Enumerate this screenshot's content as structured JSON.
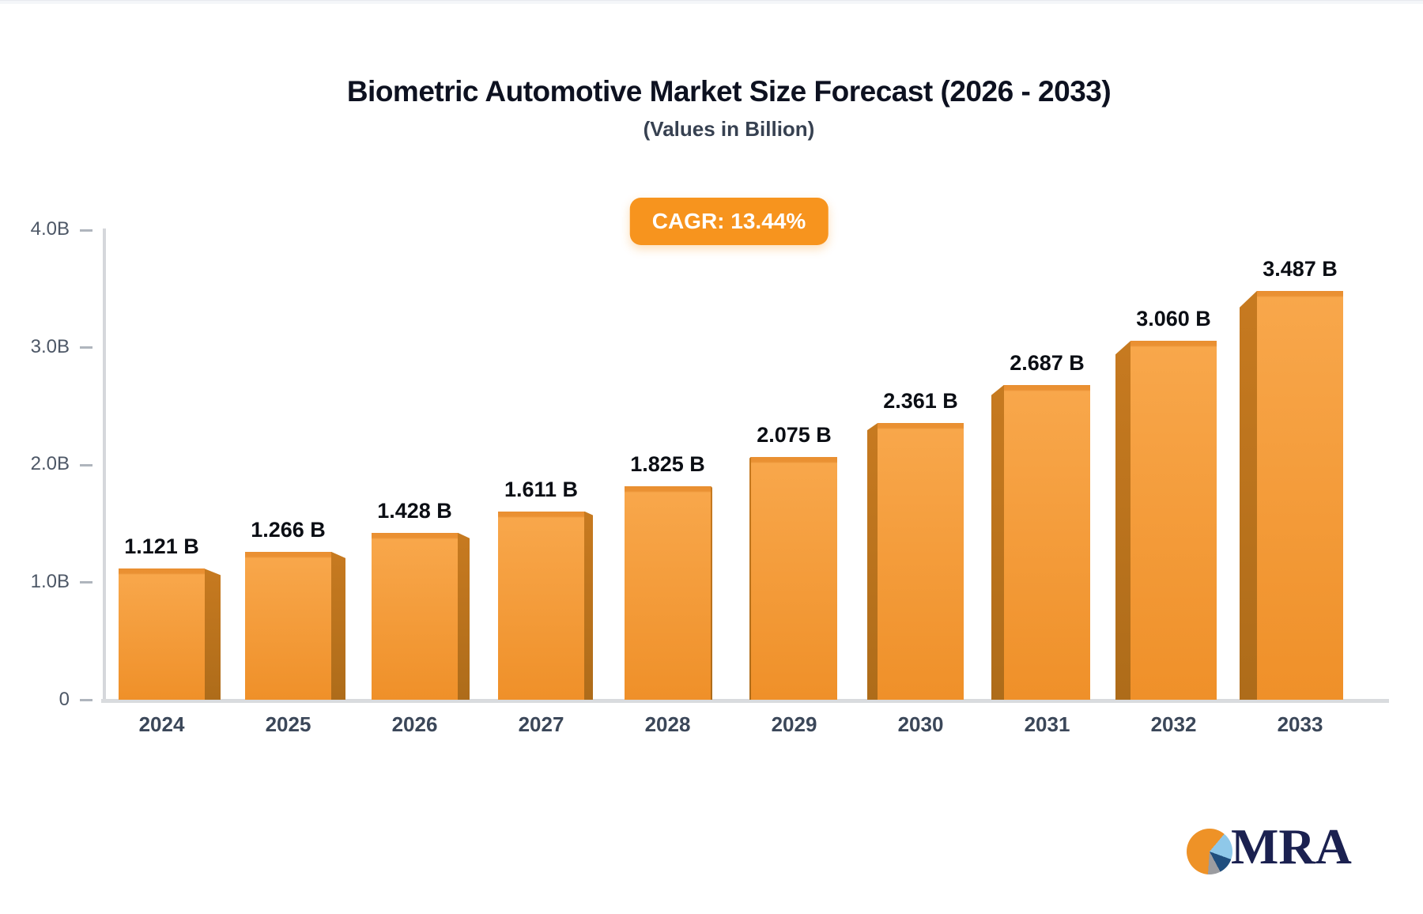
{
  "header": {
    "title": "Biometric Automotive Market Size Forecast (2026 - 2033)",
    "subtitle": "(Values in Billion)"
  },
  "badge": {
    "label": "CAGR: 13.44%"
  },
  "chart_data": {
    "type": "bar",
    "title": "Biometric Automotive Market Size Forecast (2026 - 2033)",
    "subtitle": "(Values in Billion)",
    "cagr_percent": 13.44,
    "unit": "Billion",
    "categories": [
      "2024",
      "2025",
      "2026",
      "2027",
      "2028",
      "2029",
      "2030",
      "2031",
      "2032",
      "2033"
    ],
    "values": [
      1.121,
      1.266,
      1.428,
      1.611,
      1.825,
      2.075,
      2.361,
      2.687,
      3.06,
      3.487
    ],
    "data_labels": [
      "1.121 B",
      "1.266 B",
      "1.428 B",
      "1.611 B",
      "1.825 B",
      "2.075 B",
      "2.361 B",
      "2.687 B",
      "3.060 B",
      "3.487 B"
    ],
    "xlabel": "",
    "ylabel": "",
    "ylim": [
      0,
      4
    ],
    "yticks": [
      {
        "value": 0,
        "label": "0"
      },
      {
        "value": 1,
        "label": "1.0B"
      },
      {
        "value": 2,
        "label": "2.0B"
      },
      {
        "value": 3,
        "label": "3.0B"
      },
      {
        "value": 4,
        "label": "4.0B"
      }
    ],
    "grid": false,
    "legend": false,
    "bar_style": "3d-perspective"
  },
  "logo": {
    "text": "MRA"
  },
  "colors": {
    "accent_orange": "#F7941E",
    "bar_front": "#F49B35",
    "bar_side": "#BE741E",
    "axis_gray": "#D7D9DC",
    "tick_text": "#4D5766",
    "x_label_text": "#3B4759",
    "title_text": "#0D1120",
    "logo_navy": "#1B2150",
    "logo_pie": [
      "#EE9227",
      "#8FC8E9",
      "#1F4E7E",
      "#9B9CA0"
    ]
  }
}
